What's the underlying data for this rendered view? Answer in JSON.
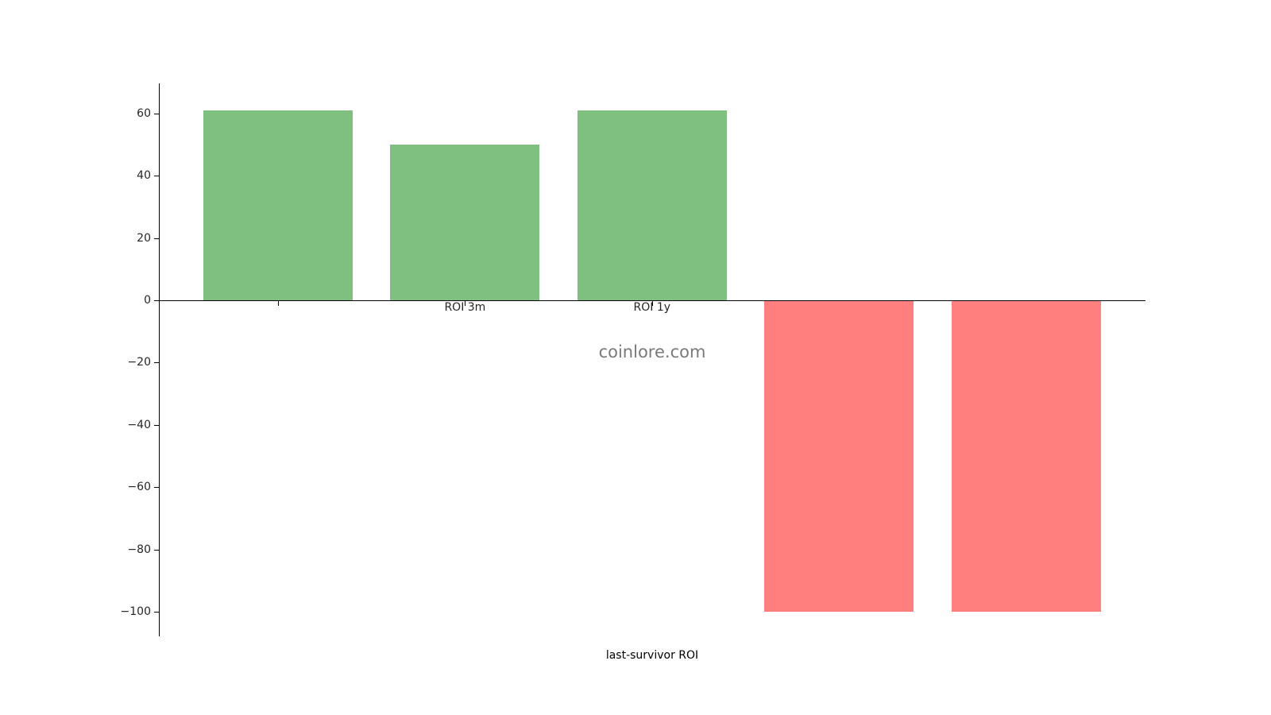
{
  "chart_data": {
    "type": "bar",
    "title": "",
    "xlabel": "last-survivor ROI",
    "ylabel": "",
    "watermark": "coinlore.com",
    "categories": [
      {
        "label": "",
        "tick": true
      },
      {
        "label": "ROI 3m",
        "tick": true
      },
      {
        "label": "ROI 1y",
        "tick": true
      },
      {
        "label": "",
        "tick": false
      },
      {
        "label": "",
        "tick": false
      }
    ],
    "values": [
      61,
      50,
      61,
      -100,
      -100
    ],
    "bar_colors": [
      "#7fbf7f",
      "#7fbf7f",
      "#7fbf7f",
      "#ff7f7f",
      "#ff7f7f"
    ],
    "positive_color": "#7fbf7f",
    "negative_color": "#ff7f7f",
    "yticks": [
      {
        "v": 60,
        "label": "60"
      },
      {
        "v": 40,
        "label": "40"
      },
      {
        "v": 20,
        "label": "20"
      },
      {
        "v": 0,
        "label": "0"
      },
      {
        "v": -20,
        "label": "−20"
      },
      {
        "v": -40,
        "label": "−40"
      },
      {
        "v": -60,
        "label": "−60"
      },
      {
        "v": -80,
        "label": "−80"
      },
      {
        "v": -100,
        "label": "−100"
      }
    ],
    "ylim": [
      -108,
      69.6
    ],
    "grid": false,
    "legend": null,
    "axis_color": "#000000",
    "tick_text_color": "#262626",
    "watermark_color": "#7a7a7a"
  }
}
